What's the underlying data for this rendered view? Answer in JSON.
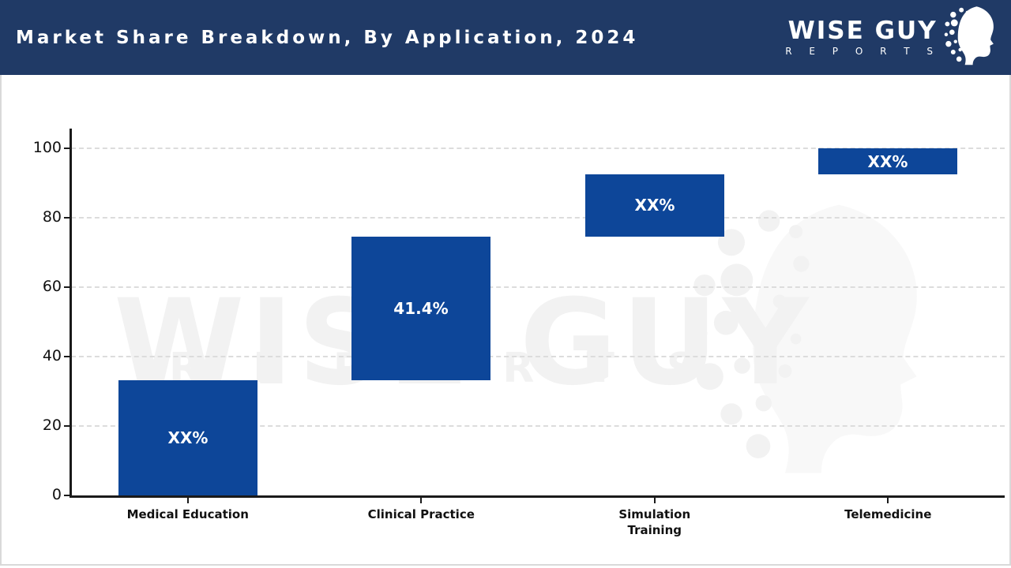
{
  "header": {
    "title": "Market Share Breakdown, By Application, 2024",
    "bg_color": "#203a66",
    "logo": {
      "line1": "WISE GUY",
      "line2": "R E P O R T S"
    }
  },
  "watermark": {
    "line1": "WISE GUY",
    "line2": "R E P O R T S"
  },
  "chart_data": {
    "type": "bar",
    "subtype": "waterfall",
    "title": "Market Share Breakdown, By Application, 2024",
    "categories": [
      "Medical Education",
      "Clinical Practice",
      "Simulation\nTraining",
      "Telemedicine"
    ],
    "segments": [
      {
        "category": "Medical Education",
        "start": 0,
        "end": 33.2,
        "label": "XX%"
      },
      {
        "category": "Clinical Practice",
        "start": 33.2,
        "end": 74.6,
        "label": "41.4%"
      },
      {
        "category": "Simulation Training",
        "start": 74.6,
        "end": 92.5,
        "label": "XX%"
      },
      {
        "category": "Telemedicine",
        "start": 92.5,
        "end": 100,
        "label": "XX%"
      }
    ],
    "xlabel": "",
    "ylabel": "",
    "yticks": [
      0,
      20,
      40,
      60,
      80,
      100
    ],
    "ylim": [
      0,
      105.7
    ],
    "grid": {
      "axis": "y",
      "style": "dashed",
      "color": "#dcdcdc"
    },
    "legend": "none",
    "bar_color": "#0d4699",
    "bar_label_color": "#ffffff"
  }
}
